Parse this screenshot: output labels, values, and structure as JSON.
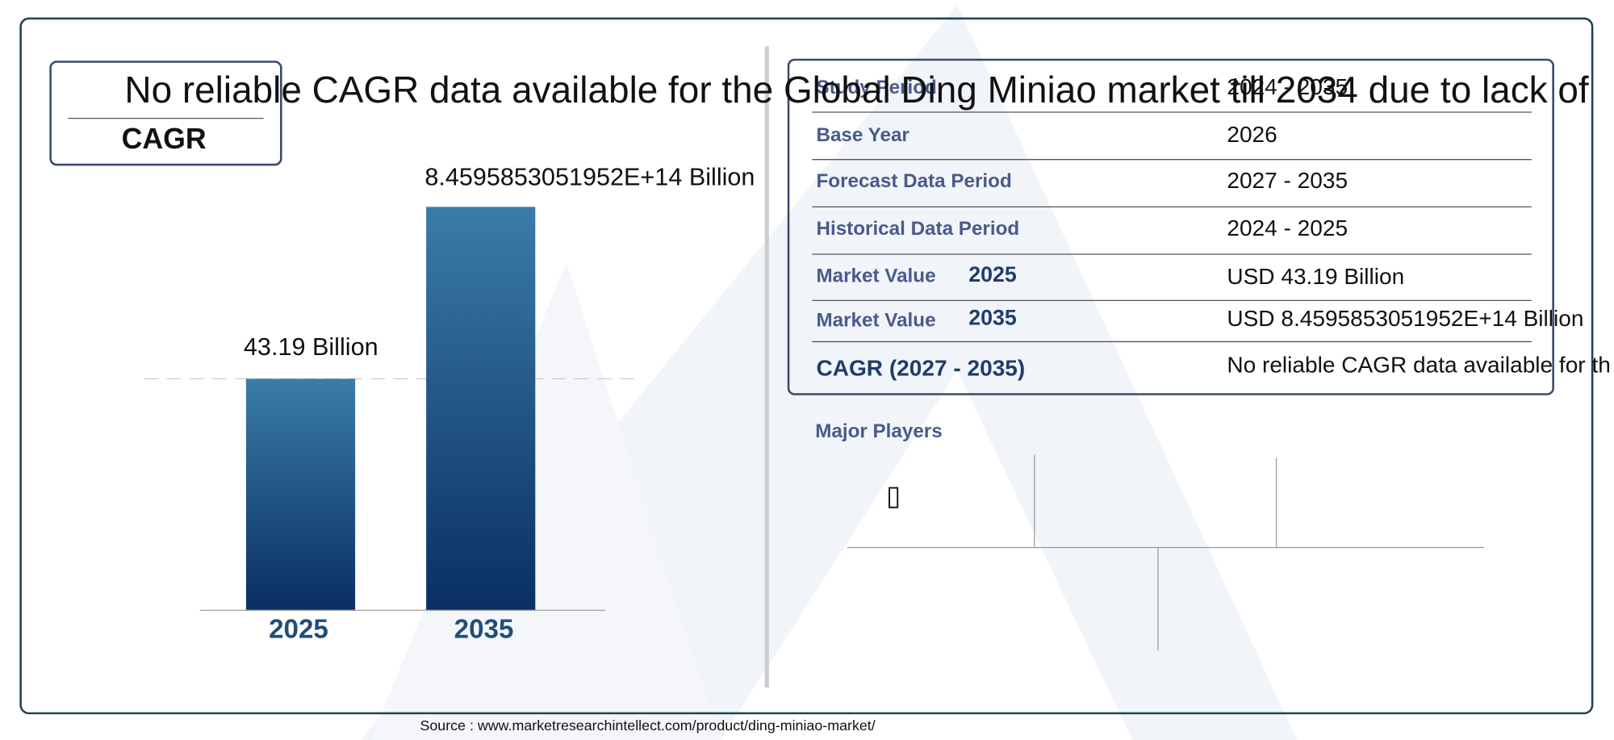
{
  "cagr_box": {
    "label": "CAGR",
    "headline": "No reliable CAGR data available for the Global Ding Miniao market till 2034 due to lack of"
  },
  "bars": [
    {
      "year": "2025",
      "label": "43.19 Billion"
    },
    {
      "year": "2035",
      "label": "8.4595853051952E+14 Billion"
    }
  ],
  "table": {
    "rows": [
      {
        "label": "Study Period",
        "value": "2024 - 2035"
      },
      {
        "label": "Base Year",
        "value": "2026"
      },
      {
        "label": "Forecast Data Period",
        "value": "2027 - 2035"
      },
      {
        "label": "Historical Data Period",
        "value": "2024 - 2025"
      },
      {
        "label": "Market Value",
        "year": "2025",
        "value": "USD 43.19 Billion"
      },
      {
        "label": "Market Value",
        "year": "2035",
        "value": "USD 8.4595853051952E+14 Billion"
      },
      {
        "label": "CAGR (2027 - 2035)",
        "value": "No reliable CAGR data available for th"
      }
    ]
  },
  "major_players": {
    "title": "Major Players"
  },
  "source": "Source : www.marketresearchintellect.com/product/ding-miniao-market/"
}
